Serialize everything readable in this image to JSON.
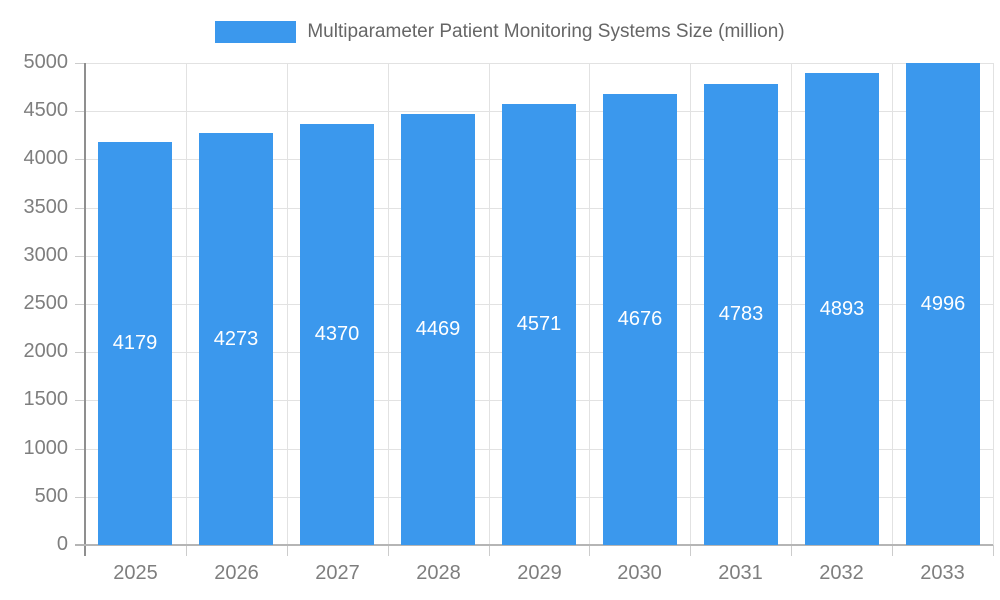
{
  "legend": {
    "label": "Multiparameter Patient Monitoring Systems Size (million)"
  },
  "chart_data": {
    "type": "bar",
    "title": "Multiparameter Patient Monitoring Systems Size (million)",
    "categories": [
      "2025",
      "2026",
      "2027",
      "2028",
      "2029",
      "2030",
      "2031",
      "2032",
      "2033"
    ],
    "values": [
      4179,
      4273,
      4370,
      4469,
      4571,
      4676,
      4783,
      4893,
      4996
    ],
    "xlabel": "",
    "ylabel": "",
    "ylim": [
      0,
      5000
    ],
    "ytick_step": 500,
    "grid": true,
    "legend_position": "top",
    "bar_color": "#3b98ed",
    "value_label_color": "#ffffff",
    "grid_color": "#e2e2e2",
    "y_axis_color": "#8f8f8f",
    "x_axis_color": "#b5b5b5",
    "tick_color": "#cccccc",
    "tick_label_color": "#7e7e7e",
    "legend_text_color": "#666666"
  }
}
